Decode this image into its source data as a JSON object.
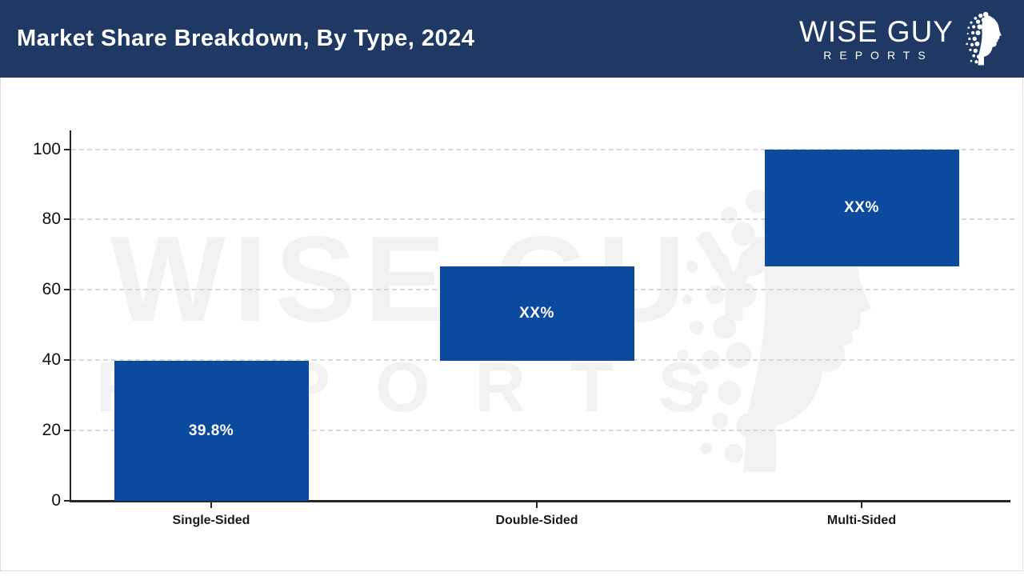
{
  "header": {
    "title": "Market Share Breakdown, By Type, 2024",
    "logo": {
      "line1": "WISE GUY",
      "line2": "REPORTS"
    }
  },
  "watermark": {
    "line1": "WISE GUY",
    "line2": "REPORTS"
  },
  "colors": {
    "header_bg": "#1f3864",
    "bar_blue": "#0b4a9e",
    "gridline": "#d9d9d9",
    "axis": "#262626",
    "watermark": "#f2f2f3"
  },
  "chart_data": {
    "type": "bar",
    "subtype": "floating-waterfall",
    "title": "Market Share Breakdown, By Type, 2024",
    "categories": [
      "Single-Sided",
      "Double-Sided",
      "Multi-Sided"
    ],
    "segments": [
      {
        "category": "Single-Sided",
        "start": 0,
        "end": 39.8,
        "label": "39.8%"
      },
      {
        "category": "Double-Sided",
        "start": 39.8,
        "end": 66.6,
        "label": "XX%"
      },
      {
        "category": "Multi-Sided",
        "start": 66.6,
        "end": 100,
        "label": "XX%"
      }
    ],
    "yticks": [
      0,
      20,
      40,
      60,
      80,
      100
    ],
    "ylim": [
      0,
      105
    ],
    "xlabel": "",
    "ylabel": "",
    "grid": "horizontal-dashed",
    "legend": "none",
    "bar_color": "#0b4a9e",
    "bar_label_color": "#ffffff"
  }
}
